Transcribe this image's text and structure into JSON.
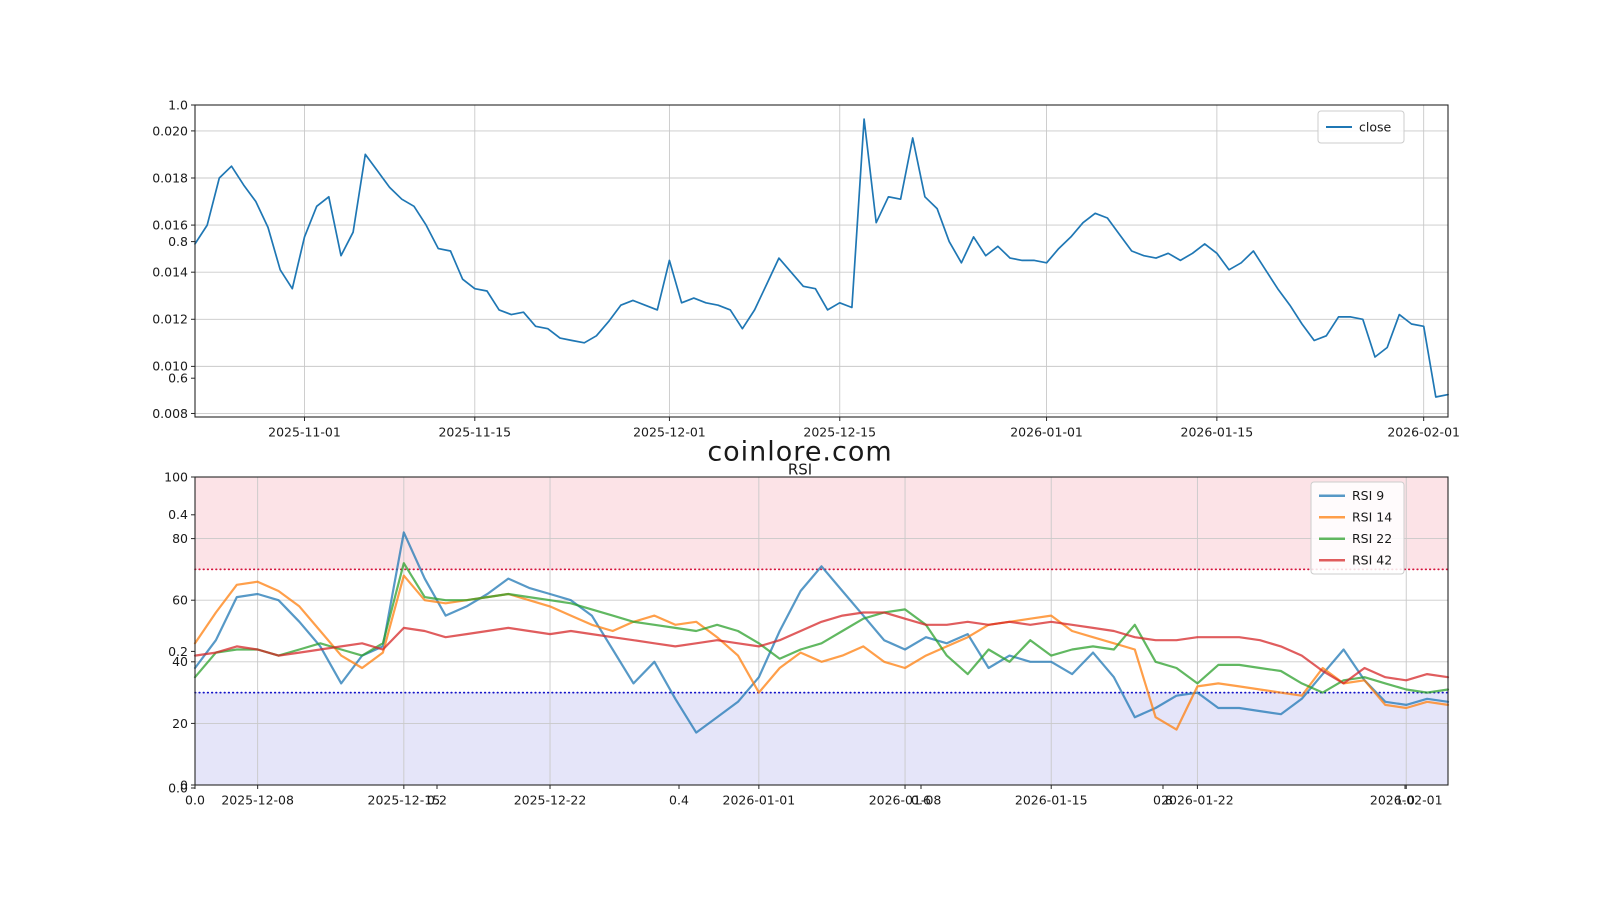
{
  "figure": {
    "watermark": {
      "text": "coinlore.com",
      "color": "#8c8c8c"
    },
    "overlay_axis": {
      "x_ticks": [
        {
          "label": "0.0",
          "t": 0.0
        },
        {
          "label": "0.2",
          "t": 0.2
        },
        {
          "label": "0.4",
          "t": 0.4
        },
        {
          "label": "0.6",
          "t": 0.6
        },
        {
          "label": "0.8",
          "t": 0.8
        },
        {
          "label": "1.0",
          "t": 1.0
        }
      ],
      "y_ticks": [
        {
          "label": "1.0",
          "t": 1.0
        },
        {
          "label": "0.8",
          "t": 0.8
        },
        {
          "label": "0.6",
          "t": 0.6
        },
        {
          "label": "0.4",
          "t": 0.4
        },
        {
          "label": "0.2",
          "t": 0.2
        },
        {
          "label": "0.0",
          "t": 0.0
        }
      ]
    },
    "grid_color": "#c9c9c9",
    "spine_color": "#262626"
  },
  "chart_data": [
    {
      "type": "line",
      "title": "",
      "x_start_date": "2025-10-23",
      "x_days_total": 103,
      "ylim": [
        0.00785,
        0.0211
      ],
      "grid": true,
      "legend_position": "upper right",
      "x_ticks": [
        {
          "label": "2025-11-01",
          "day": 9
        },
        {
          "label": "2025-11-15",
          "day": 23
        },
        {
          "label": "2025-12-01",
          "day": 39
        },
        {
          "label": "2025-12-15",
          "day": 53
        },
        {
          "label": "2026-01-01",
          "day": 70
        },
        {
          "label": "2026-01-15",
          "day": 84
        },
        {
          "label": "2026-02-01",
          "day": 101
        }
      ],
      "y_ticks": [
        {
          "label": "0.020",
          "value": 0.02
        },
        {
          "label": "0.018",
          "value": 0.018
        },
        {
          "label": "0.016",
          "value": 0.016
        },
        {
          "label": "0.014",
          "value": 0.014
        },
        {
          "label": "0.012",
          "value": 0.012
        },
        {
          "label": "0.010",
          "value": 0.01
        },
        {
          "label": "0.008",
          "value": 0.008
        }
      ],
      "series": [
        {
          "name": "close",
          "color": "#1f77b4",
          "values": [
            0.0152,
            0.016,
            0.018,
            0.0185,
            0.0177,
            0.017,
            0.0159,
            0.0141,
            0.0133,
            0.0155,
            0.0168,
            0.0172,
            0.0147,
            0.0157,
            0.019,
            0.0183,
            0.0176,
            0.0171,
            0.0168,
            0.016,
            0.015,
            0.0149,
            0.0137,
            0.0133,
            0.0132,
            0.0124,
            0.0122,
            0.0123,
            0.0117,
            0.0116,
            0.0112,
            0.0111,
            0.011,
            0.0113,
            0.0119,
            0.0126,
            0.0128,
            0.0126,
            0.0124,
            0.0145,
            0.0127,
            0.0129,
            0.0127,
            0.0126,
            0.0124,
            0.0116,
            0.0124,
            0.0135,
            0.0146,
            0.014,
            0.0134,
            0.0133,
            0.0124,
            0.0127,
            0.0125,
            0.0205,
            0.0161,
            0.0172,
            0.0171,
            0.0197,
            0.0172,
            0.0167,
            0.0153,
            0.0144,
            0.0155,
            0.0147,
            0.0151,
            0.0146,
            0.0145,
            0.0145,
            0.0144,
            0.015,
            0.0155,
            0.0161,
            0.0165,
            0.0163,
            0.0156,
            0.0149,
            0.0147,
            0.0146,
            0.0148,
            0.0145,
            0.0148,
            0.0152,
            0.0148,
            0.0141,
            0.0144,
            0.0149,
            0.0141,
            0.0133,
            0.0126,
            0.0118,
            0.0111,
            0.0113,
            0.0121,
            0.0121,
            0.012,
            0.0104,
            0.0108,
            0.0122,
            0.0118,
            0.0117,
            0.0087,
            0.0088
          ]
        }
      ]
    },
    {
      "type": "line",
      "title": "RSI",
      "x_start_date": "2025-12-05",
      "x_days_total": 60,
      "ylim": [
        0,
        100
      ],
      "grid": true,
      "legend_position": "upper right",
      "overbought_level": 70,
      "oversold_level": 30,
      "hlines": [
        {
          "y": 70,
          "color": "#d4143c",
          "style": "dotted",
          "name": "overbought-line"
        },
        {
          "y": 30,
          "color": "#1414c8",
          "style": "dotted",
          "name": "oversold-line"
        }
      ],
      "bands": [
        {
          "from": 70,
          "to": 100,
          "color": "rgba(231,36,73,0.13)",
          "name": "overbought-band"
        },
        {
          "from": 0,
          "to": 30,
          "color": "rgba(55,55,210,0.13)",
          "name": "oversold-band"
        }
      ],
      "x_ticks": [
        {
          "label": "2025-12-08",
          "day": 3
        },
        {
          "label": "2025-12-15",
          "day": 10
        },
        {
          "label": "2025-12-22",
          "day": 17
        },
        {
          "label": "2026-01-01",
          "day": 27
        },
        {
          "label": "2026-01-08",
          "day": 34
        },
        {
          "label": "2026-01-15",
          "day": 41
        },
        {
          "label": "2026-01-22",
          "day": 48
        },
        {
          "label": "2026-02-01",
          "day": 58
        }
      ],
      "y_ticks": [
        {
          "label": "100",
          "value": 100
        },
        {
          "label": "80",
          "value": 80
        },
        {
          "label": "60",
          "value": 60
        },
        {
          "label": "40",
          "value": 40
        },
        {
          "label": "20",
          "value": 20
        },
        {
          "label": "0",
          "value": 0
        }
      ],
      "series": [
        {
          "name": "RSI 9",
          "color": "rgba(31,119,180,0.75)",
          "values": [
            38,
            47,
            61,
            62,
            60,
            53,
            45,
            33,
            42,
            45,
            82,
            67,
            55,
            58,
            62,
            67,
            64,
            62,
            60,
            55,
            44,
            33,
            40,
            28,
            17,
            22,
            27,
            35,
            50,
            63,
            71,
            63,
            55,
            47,
            44,
            48,
            46,
            49,
            38,
            42,
            40,
            40,
            36,
            43,
            35,
            22,
            25,
            29,
            30,
            25,
            25,
            24,
            23,
            28,
            36,
            44,
            34,
            27,
            26,
            28,
            27
          ]
        },
        {
          "name": "RSI 14",
          "color": "rgba(255,127,14,0.75)",
          "values": [
            46,
            56,
            65,
            66,
            63,
            58,
            50,
            42,
            38,
            43,
            68,
            60,
            59,
            60,
            61,
            62,
            60,
            58,
            55,
            52,
            50,
            53,
            55,
            52,
            53,
            48,
            42,
            30,
            38,
            43,
            40,
            42,
            45,
            40,
            38,
            42,
            45,
            48,
            52,
            53,
            54,
            55,
            50,
            48,
            46,
            44,
            22,
            18,
            32,
            33,
            32,
            31,
            30,
            29,
            38,
            33,
            34,
            26,
            25,
            27,
            26
          ]
        },
        {
          "name": "RSI 22",
          "color": "rgba(44,160,44,0.75)",
          "values": [
            35,
            43,
            44,
            44,
            42,
            44,
            46,
            44,
            42,
            46,
            72,
            61,
            60,
            60,
            61,
            62,
            61,
            60,
            59,
            57,
            55,
            53,
            52,
            51,
            50,
            52,
            50,
            46,
            41,
            44,
            46,
            50,
            54,
            56,
            57,
            52,
            42,
            36,
            44,
            40,
            47,
            42,
            44,
            45,
            44,
            52,
            40,
            38,
            33,
            39,
            39,
            38,
            37,
            33,
            30,
            34,
            35,
            33,
            31,
            30,
            31
          ]
        },
        {
          "name": "RSI 42",
          "color": "rgba(214,39,40,0.75)",
          "values": [
            42,
            43,
            45,
            44,
            42,
            43,
            44,
            45,
            46,
            44,
            51,
            50,
            48,
            49,
            50,
            51,
            50,
            49,
            50,
            49,
            48,
            47,
            46,
            45,
            46,
            47,
            46,
            45,
            47,
            50,
            53,
            55,
            56,
            56,
            54,
            52,
            52,
            53,
            52,
            53,
            52,
            53,
            52,
            51,
            50,
            48,
            47,
            47,
            48,
            48,
            48,
            47,
            45,
            42,
            37,
            33,
            38,
            35,
            34,
            36,
            35
          ]
        }
      ]
    }
  ]
}
